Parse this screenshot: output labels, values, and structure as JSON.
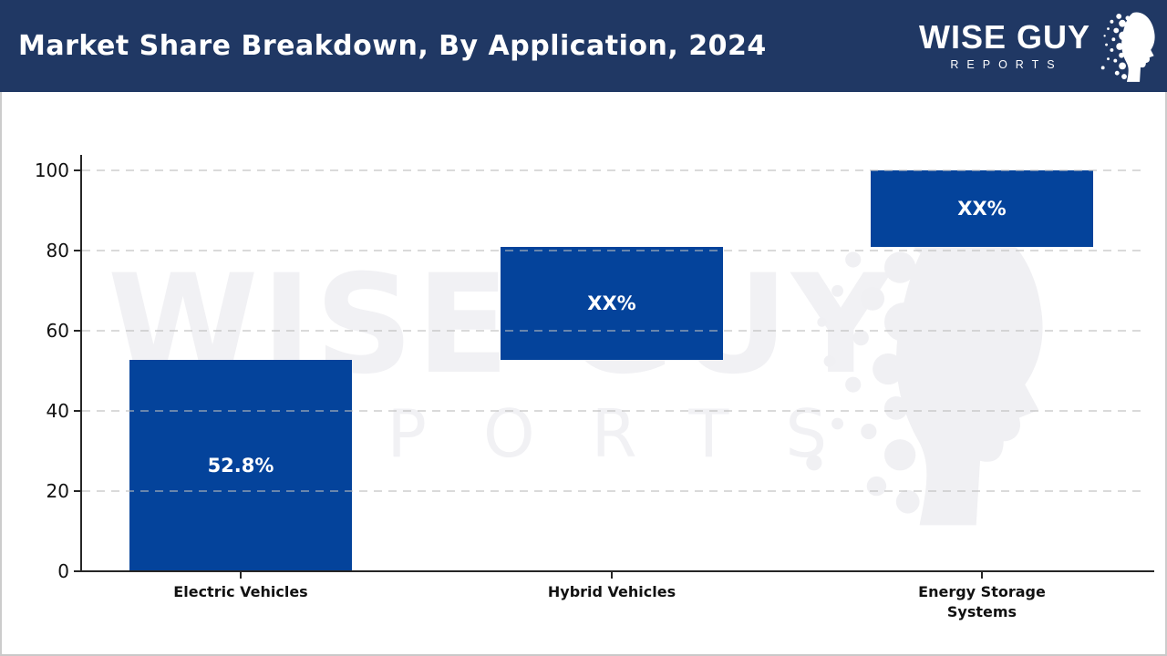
{
  "header": {
    "title": "Market Share Breakdown, By Application, 2024",
    "logo": {
      "name_line": "WISE GUY",
      "sub_line": "REPORTS"
    }
  },
  "watermark": {
    "name_line": "WISE GUY",
    "sub_line": "REPORTS"
  },
  "chart_data": {
    "type": "bar",
    "variant": "floating-segment-waterfall",
    "title": "Market Share Breakdown, By Application, 2024",
    "categories": [
      "Electric Vehicles",
      "Hybrid Vehicles",
      "Energy Storage Systems"
    ],
    "segments": [
      {
        "category": "Electric Vehicles",
        "from": 0,
        "to": 52.8,
        "label": "52.8%"
      },
      {
        "category": "Hybrid Vehicles",
        "from": 52.8,
        "to": 81,
        "label": "XX%"
      },
      {
        "category": "Energy Storage Systems",
        "from": 81,
        "to": 100,
        "label": "XX%"
      }
    ],
    "yticks": [
      0,
      20,
      40,
      60,
      80,
      100
    ],
    "ylim": [
      0,
      104
    ],
    "xlabel": "",
    "ylabel": "",
    "grid": true,
    "grid_style": "dashed",
    "legend": false,
    "bar_color": "#04439b",
    "bar_label_color": "#ffffff"
  },
  "colors": {
    "header_bg": "#203864",
    "bar": "#04439b",
    "axis": "#262626",
    "gridline": "#dadada",
    "watermark": "#f1f1f4",
    "frame": "#cccccc"
  }
}
